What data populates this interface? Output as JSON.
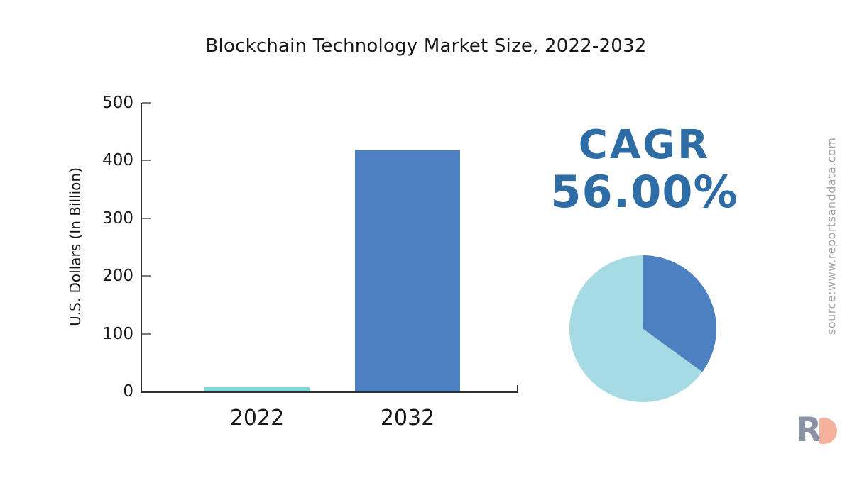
{
  "title": "Blockchain Technology Market Size, 2022-2032",
  "chart_data": [
    {
      "type": "bar",
      "title": "Blockchain Technology Market Size, 2022-2032",
      "categories": [
        "2022",
        "2032"
      ],
      "values": [
        7,
        418
      ],
      "xlabel": "",
      "ylabel": "U.S. Dollars (In Billion)",
      "ylim": [
        0,
        500
      ],
      "yticks": [
        0,
        100,
        200,
        300,
        400,
        500
      ],
      "grid": false,
      "legend": null,
      "bar_colors": [
        "#7fd6d9",
        "#4d80c0"
      ],
      "axis_color": "#2e2e2e",
      "tick_color": "#7a7a7a"
    },
    {
      "type": "pie",
      "title": "",
      "slices": [
        {
          "label": "blue-slice",
          "pct": 35,
          "color": "#4d80c0"
        },
        {
          "label": "teal-slice",
          "pct": 65,
          "color": "#a6dbe3"
        }
      ],
      "start_angle_deg": 0,
      "legend": null
    }
  ],
  "cagr": {
    "label": "CAGR",
    "value": "56.00%",
    "color": "#2d6ca4"
  },
  "source_note": "source:www.reportsanddata.com",
  "branding": {
    "logo_letter": "R",
    "logo_r_color": "#8c92a6",
    "logo_d_color": "#f4b19c"
  },
  "layout_text_color": "#171717"
}
